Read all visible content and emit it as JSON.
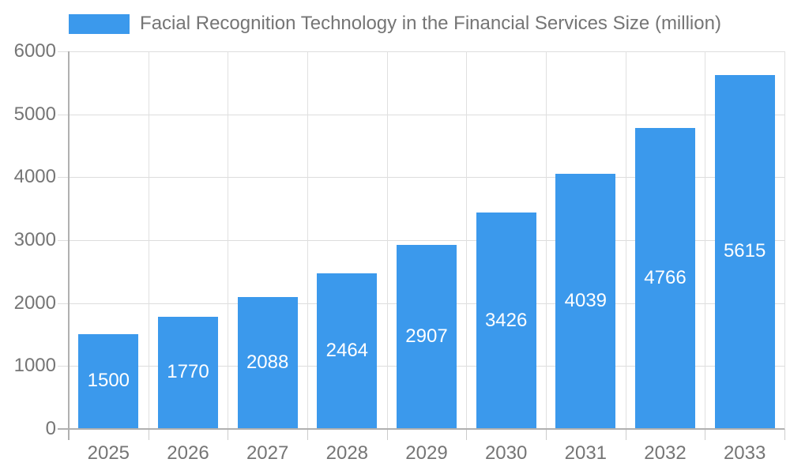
{
  "chart_data": {
    "type": "bar",
    "title": "Facial Recognition Technology in the Financial Services Size (million)",
    "legend": {
      "position": "top",
      "entries": [
        {
          "label": "Facial Recognition Technology in the Financial Services Size (million)",
          "color": "#3b99ec"
        }
      ]
    },
    "categories": [
      "2025",
      "2026",
      "2027",
      "2028",
      "2029",
      "2030",
      "2031",
      "2032",
      "2033"
    ],
    "values": [
      1500,
      1770,
      2088,
      2464,
      2907,
      3426,
      4039,
      4766,
      5615
    ],
    "xlabel": "",
    "ylabel": "",
    "ylim": [
      0,
      6000
    ],
    "ytick_step": 1000,
    "ytick_labels": [
      "0",
      "1000",
      "2000",
      "3000",
      "4000",
      "5000",
      "6000"
    ],
    "grid": true,
    "bar_color": "#3b99ec",
    "bar_value_label_color": "#ffffff",
    "axis_text_color": "#757575",
    "gridline_color": "#dddddd",
    "axis_line_color": "#b0b0b0",
    "background_color": "#ffffff"
  }
}
